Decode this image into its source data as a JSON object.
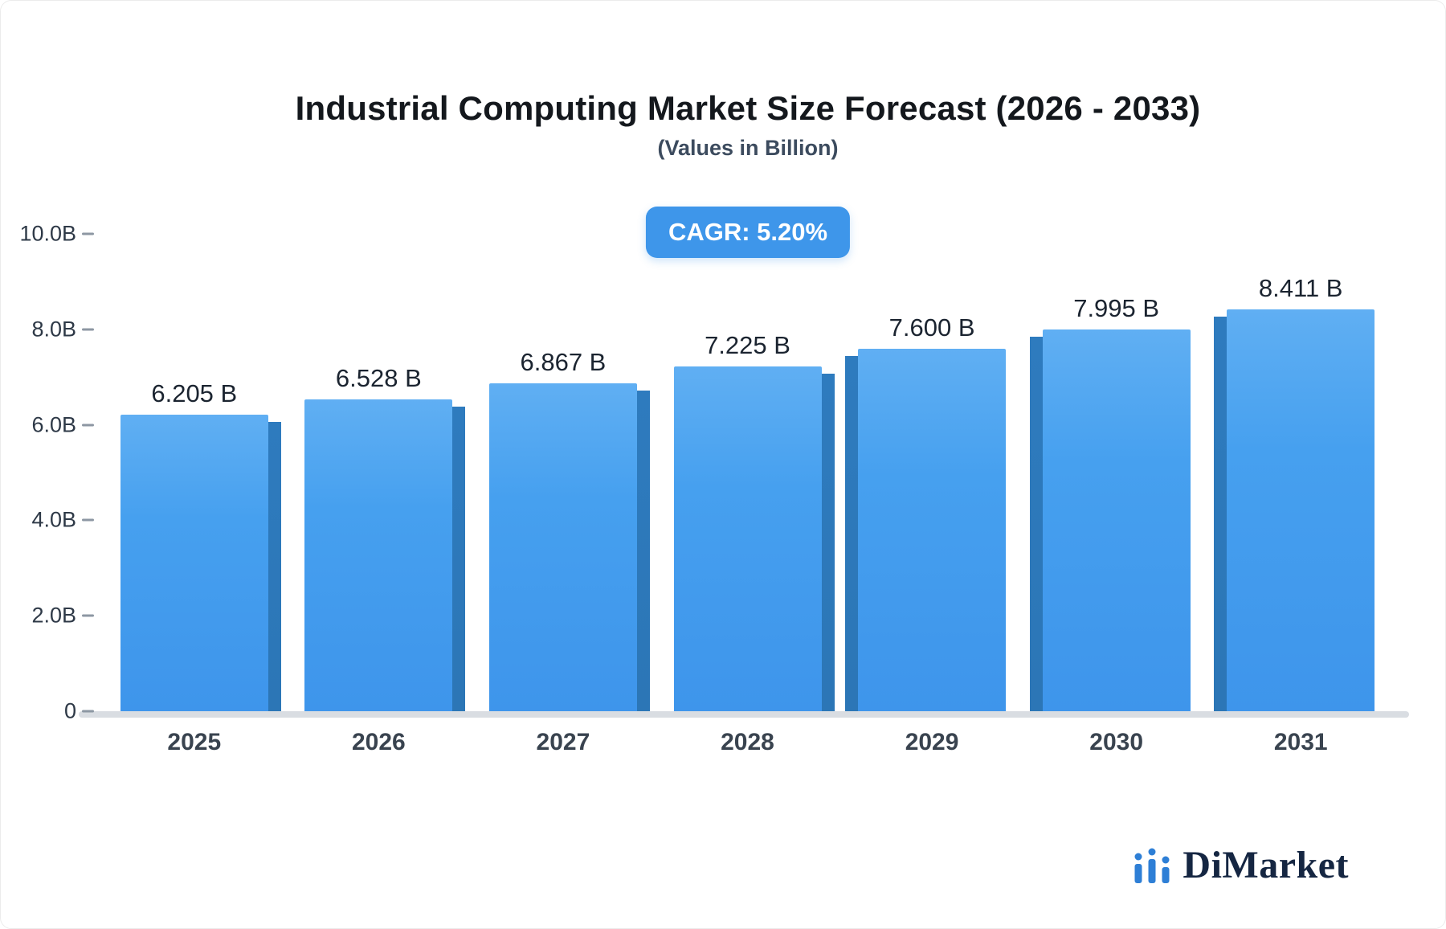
{
  "page": {
    "title": "Industrial Computing Market Size Forecast (2026 - 2033)",
    "subtitle": "(Values in Billion)",
    "cagr_badge": "CAGR: 5.20%",
    "brand": "DiMarket"
  },
  "chart_data": {
    "type": "bar",
    "title": "Industrial Computing Market Size Forecast (2026 - 2033)",
    "subtitle": "(Values in Billion)",
    "annotation": "CAGR: 5.20%",
    "categories": [
      "2025",
      "2026",
      "2027",
      "2028",
      "2029",
      "2030",
      "2031"
    ],
    "values": [
      6.205,
      6.528,
      6.867,
      7.225,
      7.6,
      7.995,
      8.411
    ],
    "value_labels": [
      "6.205 B",
      "6.528 B",
      "6.867 B",
      "7.225 B",
      "7.600 B",
      "7.995 B",
      "8.411 B"
    ],
    "xlabel": "",
    "ylabel": "",
    "ylim": [
      0,
      10
    ],
    "yticks": [
      {
        "value": 0,
        "label": "0"
      },
      {
        "value": 2,
        "label": "2.0B"
      },
      {
        "value": 4,
        "label": "4.0B"
      },
      {
        "value": 6,
        "label": "6.0B"
      },
      {
        "value": 8,
        "label": "8.0B"
      },
      {
        "value": 10,
        "label": "10.0B"
      }
    ],
    "grid": false,
    "legend": false,
    "colors": {
      "bar_top": "#60AFF3",
      "bar_bottom": "#3E95EB",
      "bar_side": "#2C76B6",
      "badge": "#3E96EA",
      "axis_text": "#2e3947",
      "brand_blue": "#2E7FD6",
      "brand_navy": "#152642"
    }
  }
}
